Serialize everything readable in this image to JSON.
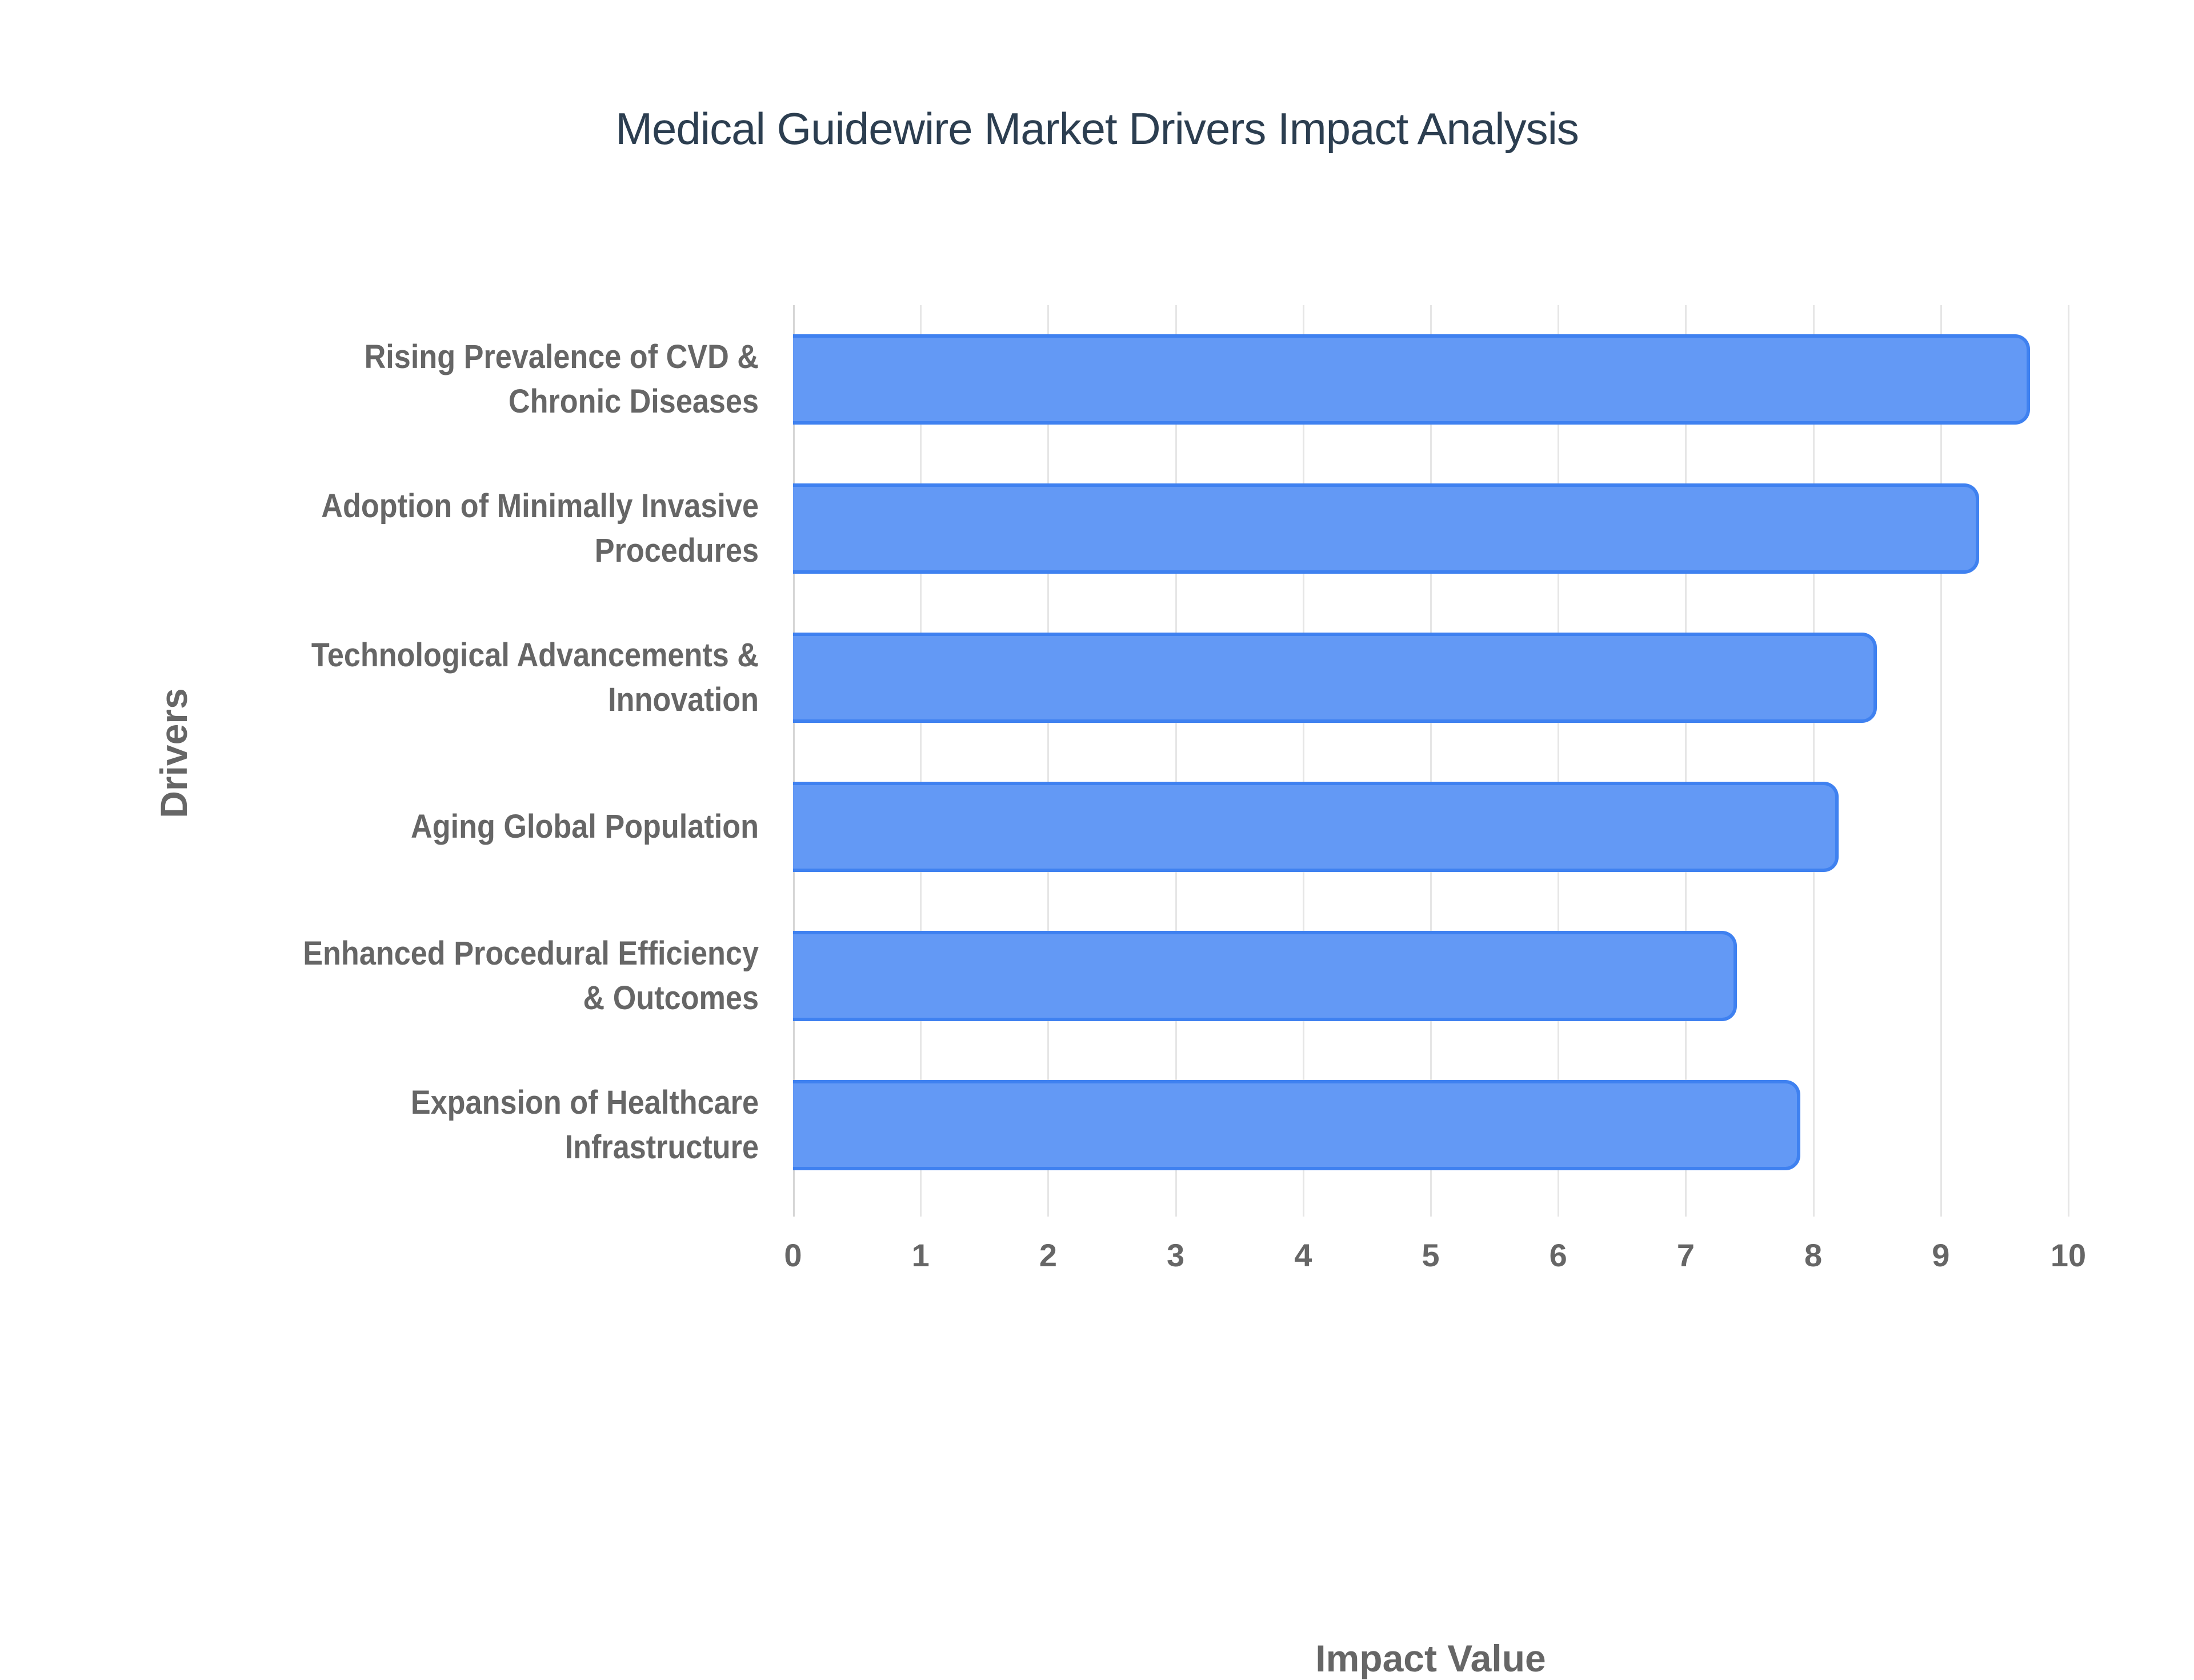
{
  "title": "Medical Guidewire Market Drivers Impact Analysis",
  "axes": {
    "x_title": "Impact Value",
    "y_title": "Drivers",
    "x_ticks": [
      "0",
      "1",
      "2",
      "3",
      "4",
      "5",
      "6",
      "7",
      "8",
      "9",
      "10"
    ]
  },
  "bars": [
    {
      "line1": "Rising Prevalence of CVD &",
      "line2": "Chronic Diseases",
      "value": 9.7
    },
    {
      "line1": "Adoption of Minimally Invasive",
      "line2": "Procedures",
      "value": 9.3
    },
    {
      "line1": "Technological Advancements &",
      "line2": "Innovation",
      "value": 8.5
    },
    {
      "line1": "Aging Global Population",
      "line2": "",
      "value": 8.2
    },
    {
      "line1": "Enhanced Procedural Efficiency",
      "line2": "& Outcomes",
      "value": 7.4
    },
    {
      "line1": "Expansion of Healthcare",
      "line2": "Infrastructure",
      "value": 7.9
    }
  ],
  "colors": {
    "bar_fill": "#6399f5",
    "bar_border": "#3f81f0",
    "title": "#2c3e50",
    "axis_text": "#666666"
  },
  "chart_data": {
    "type": "bar",
    "orientation": "horizontal",
    "title": "Medical Guidewire Market Drivers Impact Analysis",
    "xlabel": "Impact Value",
    "ylabel": "Drivers",
    "categories": [
      "Rising Prevalence of CVD & Chronic Diseases",
      "Adoption of Minimally Invasive Procedures",
      "Technological Advancements & Innovation",
      "Aging Global Population",
      "Enhanced Procedural Efficiency & Outcomes",
      "Expansion of Healthcare Infrastructure"
    ],
    "values": [
      9.7,
      9.3,
      8.5,
      8.2,
      7.4,
      7.9
    ],
    "xlim": [
      0,
      10
    ],
    "x_ticks": [
      0,
      1,
      2,
      3,
      4,
      5,
      6,
      7,
      8,
      9,
      10
    ],
    "grid": true,
    "legend": null
  }
}
